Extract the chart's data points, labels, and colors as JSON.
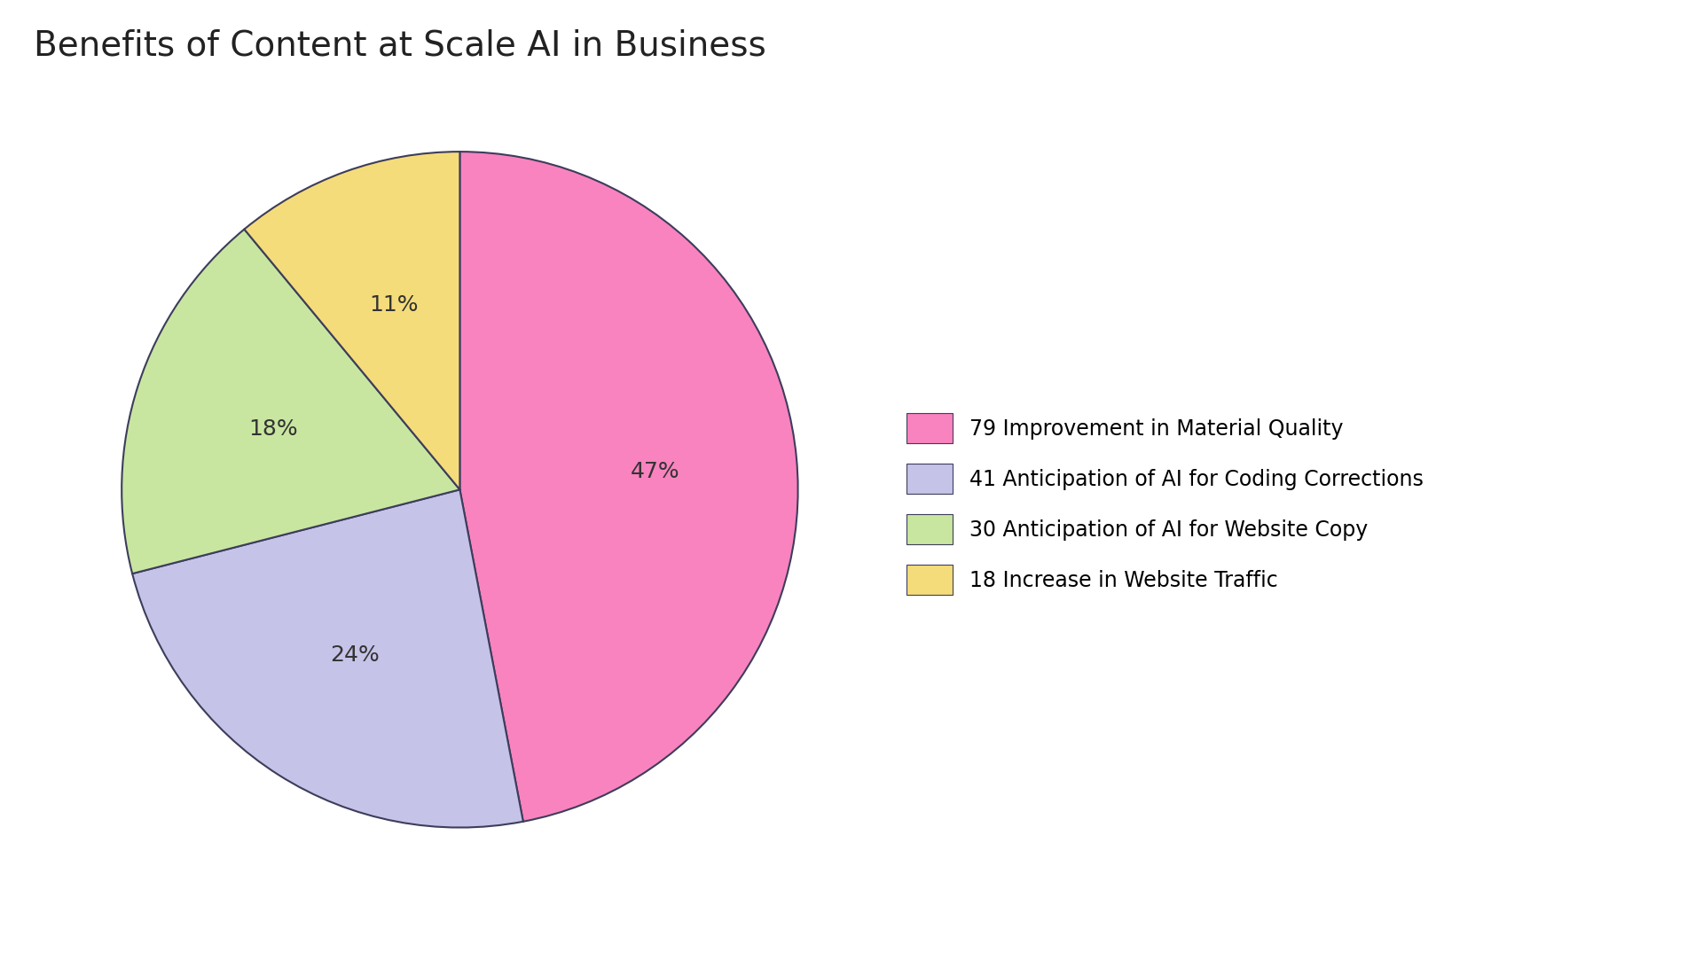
{
  "title": "Benefits of Content at Scale AI in Business",
  "slices": [
    47,
    24,
    18,
    11
  ],
  "labels": [
    "47%",
    "24%",
    "18%",
    "11%"
  ],
  "colors": [
    "#F983BF",
    "#C5C3E8",
    "#C8E6A0",
    "#F5DC7A"
  ],
  "edge_color": "#3d3d5c",
  "legend_labels": [
    "79 Improvement in Material Quality",
    "41 Anticipation of AI for Coding Corrections",
    "30 Anticipation of AI for Website Copy",
    "18 Increase in Website Traffic"
  ],
  "legend_colors": [
    "#F983BF",
    "#C5C3E8",
    "#C8E6A0",
    "#F5DC7A"
  ],
  "title_fontsize": 28,
  "label_fontsize": 18,
  "legend_fontsize": 17,
  "background_color": "#ffffff",
  "startangle": 90
}
